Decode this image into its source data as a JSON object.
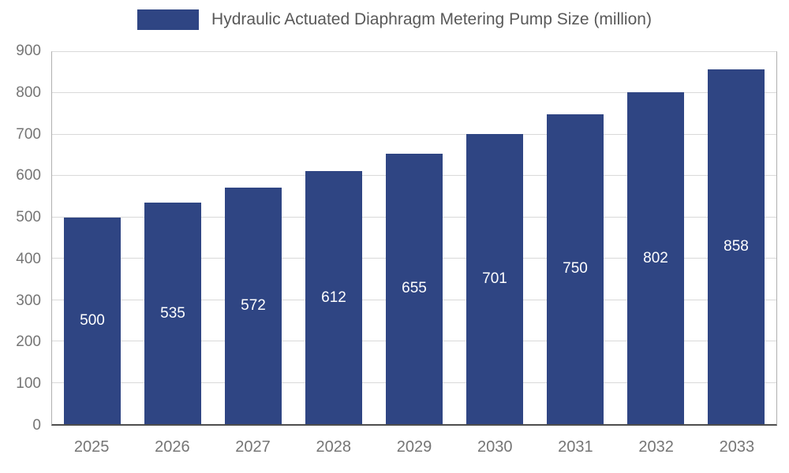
{
  "chart_data": {
    "type": "bar",
    "title": "Hydraulic Actuated Diaphragm Metering Pump Size (million)",
    "categories": [
      "2025",
      "2026",
      "2027",
      "2028",
      "2029",
      "2030",
      "2031",
      "2032",
      "2033"
    ],
    "values": [
      500,
      535,
      572,
      612,
      655,
      701,
      750,
      802,
      858
    ],
    "xlabel": "",
    "ylabel": "",
    "ylim": [
      0,
      900
    ],
    "yticks": [
      0,
      100,
      200,
      300,
      400,
      500,
      600,
      700,
      800,
      900
    ],
    "grid": "horizontal",
    "legend_position": "top-center",
    "bar_color": "#2f4583",
    "value_label_color": "#ffffff",
    "axis_label_color": "#757575",
    "title_color": "#595959",
    "gridline_color": "#d9d9d9"
  }
}
